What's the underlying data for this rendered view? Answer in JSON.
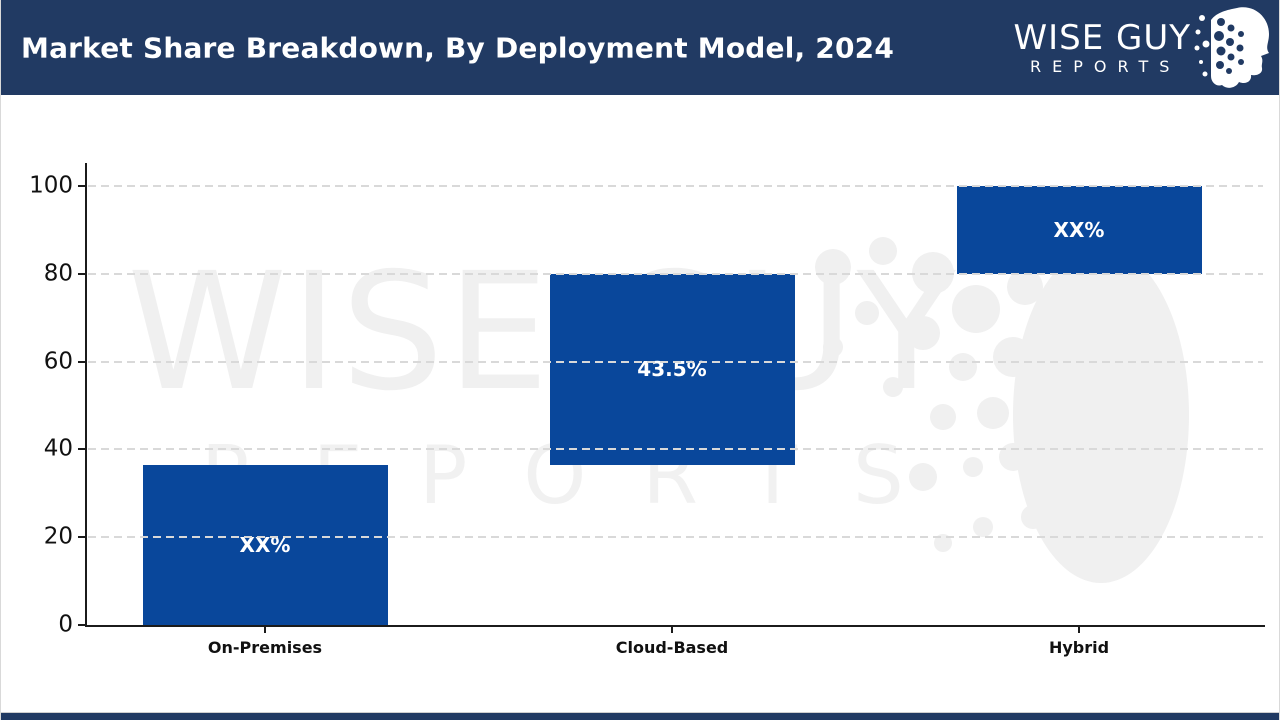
{
  "header": {
    "title": "Market Share Breakdown, By Deployment Model, 2024",
    "logo_line1": "WISE GUY",
    "logo_line2": "REPORTS"
  },
  "watermark": {
    "line1": "WISE GUY",
    "line2": "REPORTS"
  },
  "chart_data": {
    "type": "bar",
    "subtype": "waterfall",
    "title": "Market Share Breakdown, By Deployment Model, 2024",
    "categories": [
      "On-Premises",
      "Cloud-Based",
      "Hybrid"
    ],
    "segments": [
      {
        "category": "On-Premises",
        "start": 0,
        "end": 36.5,
        "label": "XX%"
      },
      {
        "category": "Cloud-Based",
        "start": 36.5,
        "end": 80,
        "label": "43.5%"
      },
      {
        "category": "Hybrid",
        "start": 80,
        "end": 100,
        "label": "XX%"
      }
    ],
    "xlabel": "",
    "ylabel": "",
    "ylim": [
      0,
      100
    ],
    "yticks": [
      0,
      20,
      40,
      60,
      80,
      100
    ],
    "grid": "horizontal-dashed",
    "legend": "none",
    "colors": {
      "bar": "#09479b",
      "bar_label": "#ffffff",
      "header_bg": "#213a63",
      "grid_line": "#d9d9d9",
      "axis": "#1b1b1b"
    }
  }
}
